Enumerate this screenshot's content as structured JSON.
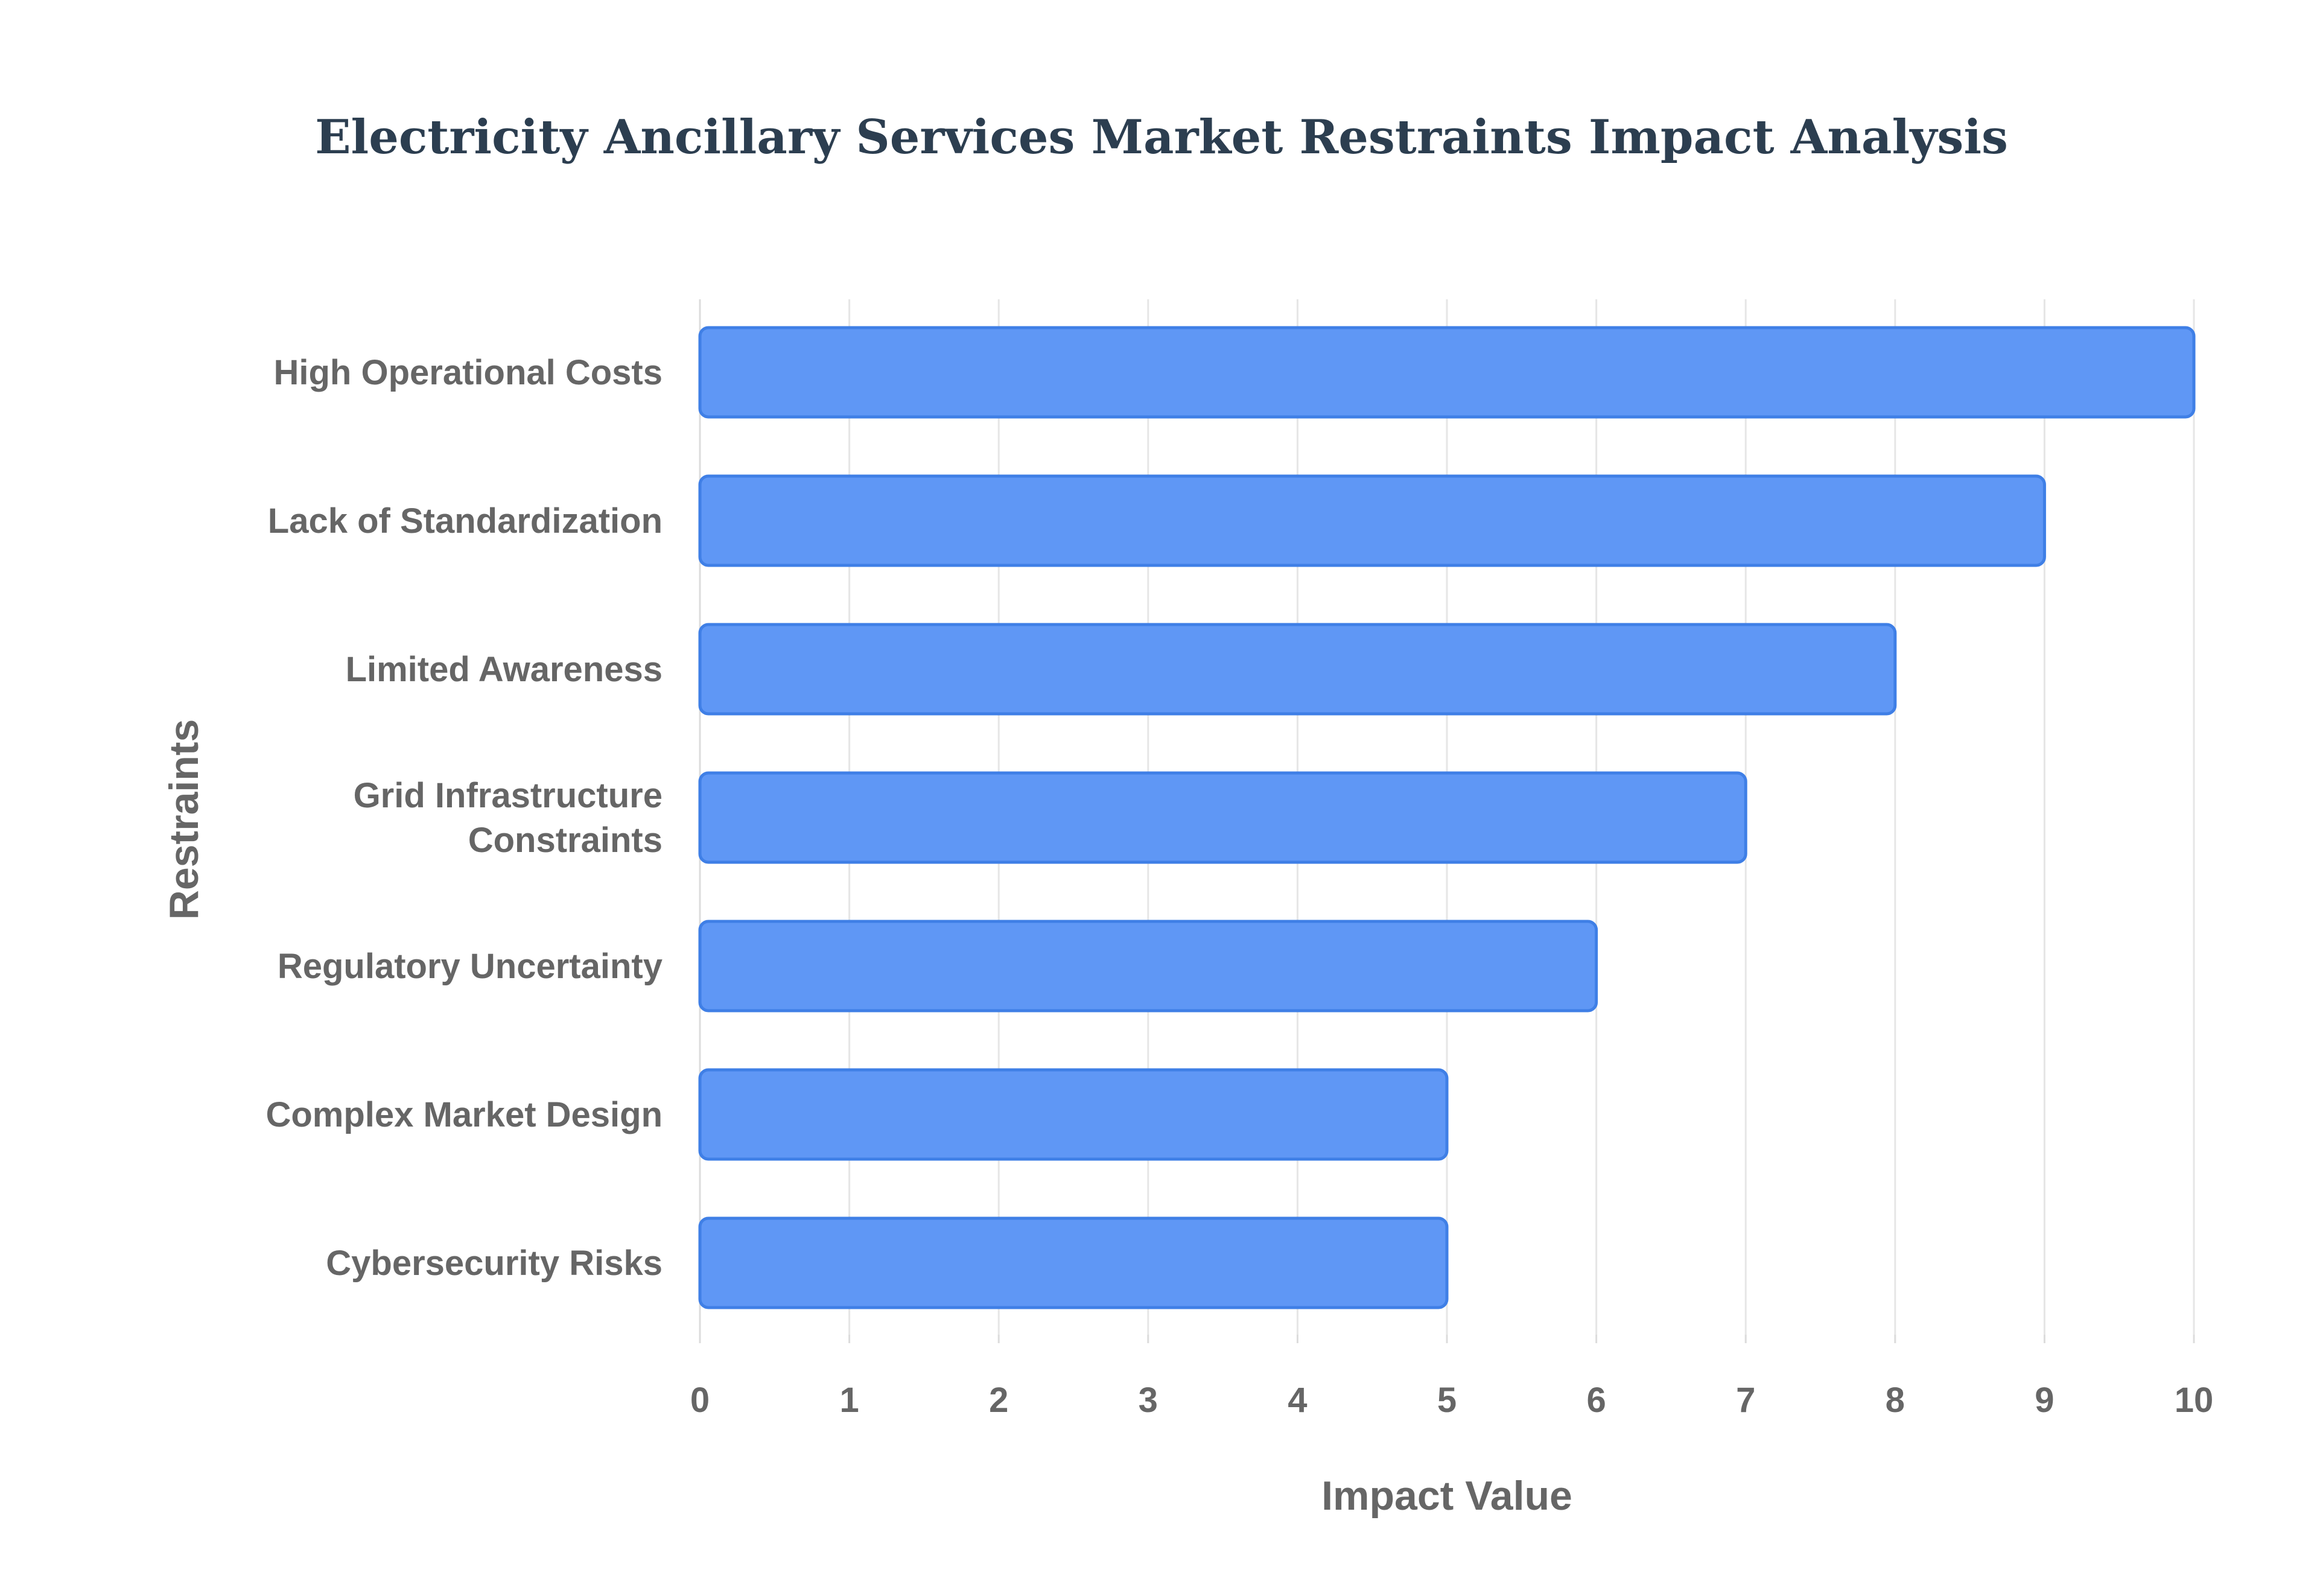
{
  "chart_data": {
    "type": "bar",
    "orientation": "horizontal",
    "title": "Electricity Ancillary Services Market Restraints Impact Analysis",
    "xlabel": "Impact Value",
    "ylabel": "Restraints",
    "xlim": [
      0,
      10
    ],
    "xticks": [
      0,
      1,
      2,
      3,
      4,
      5,
      6,
      7,
      8,
      9,
      10
    ],
    "grid": true,
    "legend": "none",
    "categories": [
      "High Operational Costs",
      "Lack of Standardization",
      "Limited Awareness",
      "Grid Infrastructure Constraints",
      "Regulatory Uncertainty",
      "Complex Market Design",
      "Cybersecurity Risks"
    ],
    "category_lines": [
      [
        "High Operational Costs"
      ],
      [
        "Lack of Standardization"
      ],
      [
        "Limited Awareness"
      ],
      [
        "Grid Infrastructure",
        "Constraints"
      ],
      [
        "Regulatory Uncertainty"
      ],
      [
        "Complex Market Design"
      ],
      [
        "Cybersecurity Risks"
      ]
    ],
    "values": [
      10,
      9,
      8,
      7,
      6,
      5,
      5
    ],
    "colors": {
      "bar_fill": "#5f97f5",
      "bar_stroke": "#3f7fe6"
    }
  }
}
